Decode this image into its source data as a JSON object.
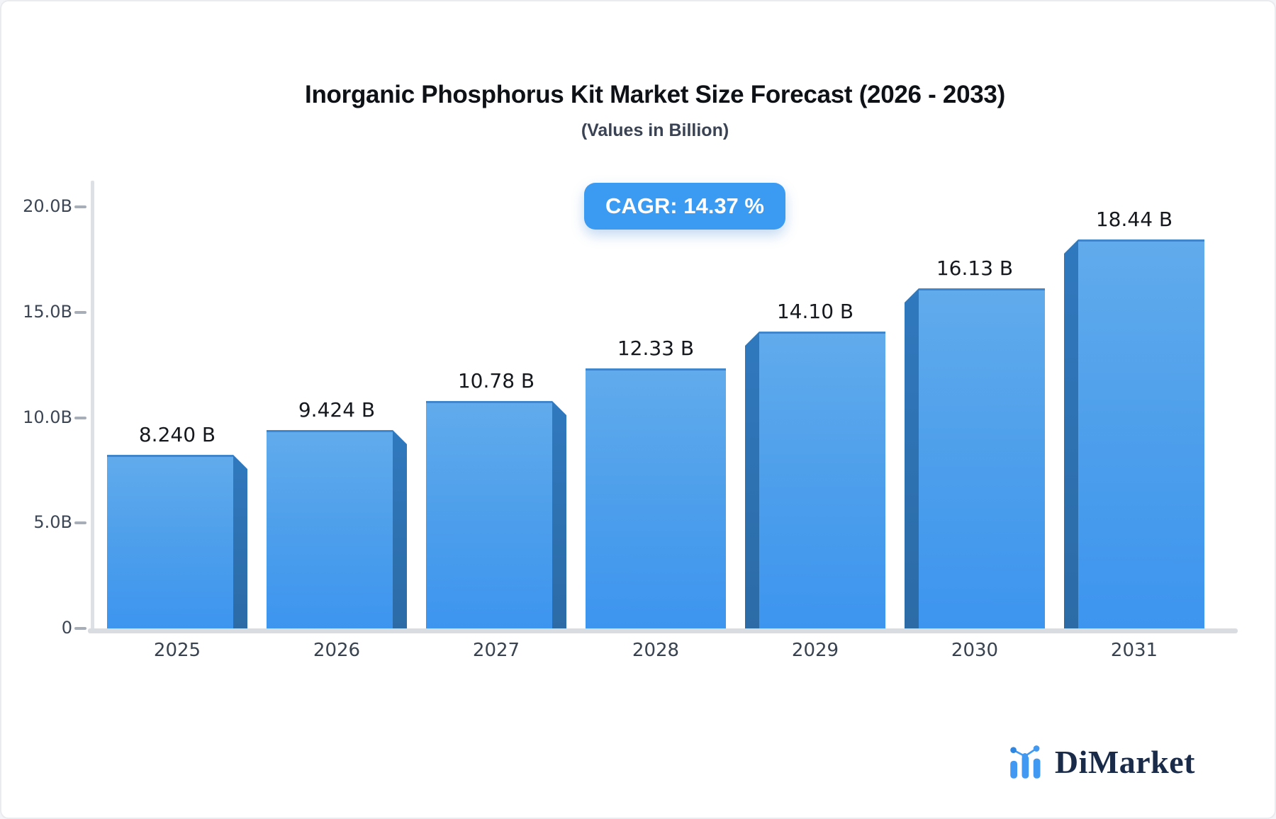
{
  "header": {
    "title": "Inorganic Phosphorus Kit Market Size Forecast (2026 - 2033)",
    "subtitle": "(Values in Billion)"
  },
  "badge": {
    "label": "CAGR: 14.37 %"
  },
  "logo": {
    "text": "DiMarket",
    "icon": "bar-chart-logo-icon"
  },
  "chart_data": {
    "type": "bar",
    "title": "Inorganic Phosphorus Kit Market Size Forecast (2026 - 2033)",
    "subtitle": "(Values in Billion)",
    "categories": [
      "2025",
      "2026",
      "2027",
      "2028",
      "2029",
      "2030",
      "2031"
    ],
    "values": [
      8.24,
      9.424,
      10.78,
      12.33,
      14.1,
      16.13,
      18.44
    ],
    "bar_labels": [
      "8.240 B",
      "9.424 B",
      "10.78 B",
      "12.33 B",
      "14.10 B",
      "16.13 B",
      "18.44 B"
    ],
    "xlabel": "",
    "ylabel": "",
    "ylim": [
      0,
      20
    ],
    "y_ticks": [
      {
        "value": 20,
        "label": "20.0B"
      },
      {
        "value": 15,
        "label": "15.0B"
      },
      {
        "value": 10,
        "label": "10.0B"
      },
      {
        "value": 5,
        "label": "5.0B"
      },
      {
        "value": 0,
        "label": "0"
      }
    ],
    "grid": false,
    "legend": false,
    "cagr": "14.37 %",
    "colors": {
      "bar_face_top": "#61ABEC",
      "bar_face_bottom": "#3D95EF",
      "bar_side": "#2E72B2",
      "bar_top_edge": "#3F86CC",
      "axis": "#D9DCE0",
      "tick_dash": "#A7AEB8",
      "text": "#3C4654",
      "badge_bg": "#3B9AF2",
      "badge_text": "#FFFFFF",
      "logo_navy": "#1A2B49",
      "logo_blue": "#4199F1"
    }
  }
}
